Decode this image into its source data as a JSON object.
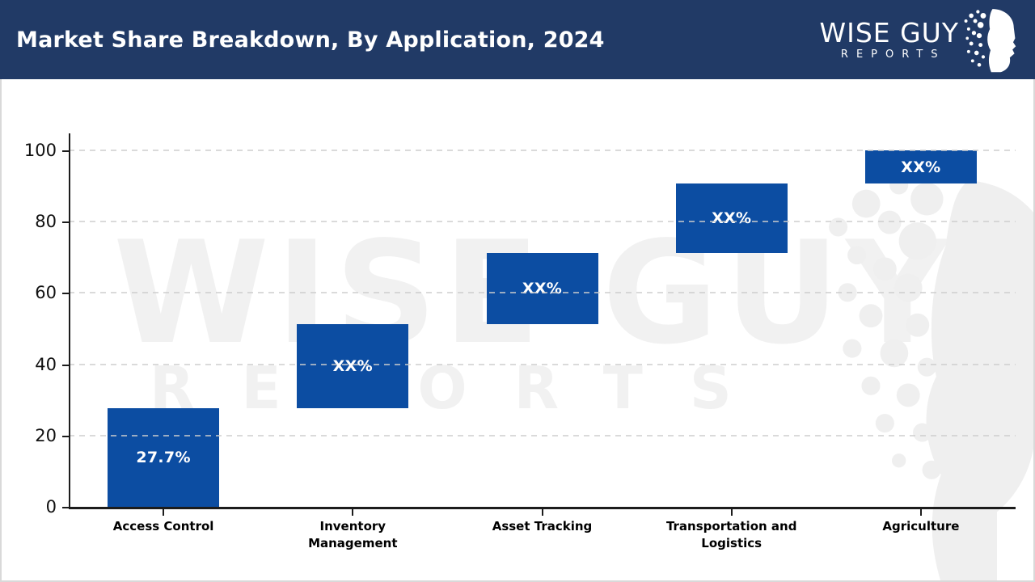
{
  "header": {
    "title": "Market Share Breakdown, By Application, 2024",
    "brand": {
      "line1": "WISE GUY",
      "line2": "REPORTS"
    },
    "background_color": "#213a66"
  },
  "watermark": {
    "line1": "WISE GUY",
    "line2": "REPORTS"
  },
  "chart_data": {
    "type": "bar",
    "subtype": "waterfall",
    "title": "Market Share Breakdown, By Application, 2024",
    "xlabel": "",
    "ylabel": "",
    "ylim": [
      0,
      105
    ],
    "yticks": [
      0,
      20,
      40,
      60,
      80,
      100
    ],
    "grid": "horizontal-dashed",
    "legend": "none",
    "bar_color": "#0c4da2",
    "value_label_color": "#ffffff",
    "categories": [
      "Access Control",
      "Inventory Management",
      "Asset Tracking",
      "Transportation and Logistics",
      "Agriculture"
    ],
    "category_label_lines": [
      [
        "Access Control"
      ],
      [
        "Inventory",
        "Management"
      ],
      [
        "Asset Tracking"
      ],
      [
        "Transportation and",
        "Logistics"
      ],
      [
        "Agriculture"
      ]
    ],
    "segments": [
      {
        "category": "Access Control",
        "start": 0,
        "end": 27.7,
        "label": "27.7%"
      },
      {
        "category": "Inventory Management",
        "start": 27.7,
        "end": 51.3,
        "label": "XX%"
      },
      {
        "category": "Asset Tracking",
        "start": 51.3,
        "end": 71.2,
        "label": "XX%"
      },
      {
        "category": "Transportation and Logistics",
        "start": 71.2,
        "end": 90.7,
        "label": "XX%"
      },
      {
        "category": "Agriculture",
        "start": 90.7,
        "end": 100,
        "label": "XX%"
      }
    ]
  }
}
